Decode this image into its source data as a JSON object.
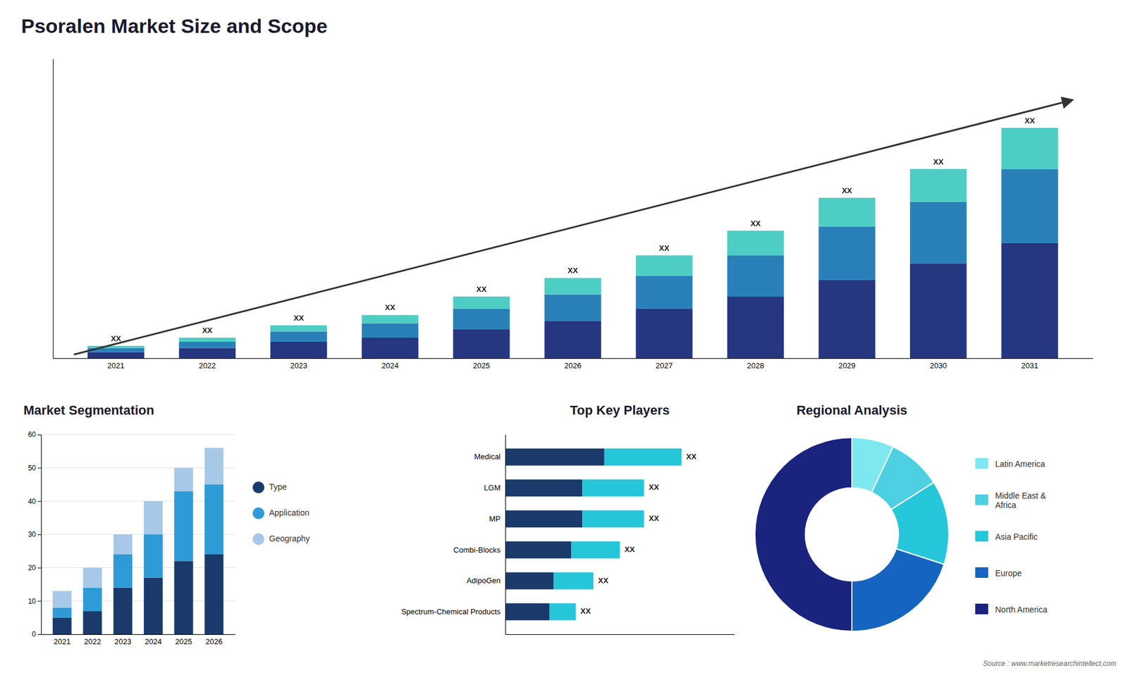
{
  "chart_data": [
    {
      "type": "bar",
      "title": "Psoralen Market Size and Scope",
      "categories": [
        "2021",
        "2022",
        "2023",
        "2024",
        "2025",
        "2026",
        "2027",
        "2028",
        "2029",
        "2030",
        "2031"
      ],
      "series": [
        {
          "color": "#263680",
          "values": [
            1.5,
            2.5,
            4,
            5,
            7,
            9,
            12,
            15,
            19,
            23,
            28
          ]
        },
        {
          "color": "#2980b9",
          "values": [
            1.0,
            1.5,
            2.5,
            3.5,
            5,
            6.5,
            8,
            10,
            13,
            15,
            18
          ]
        },
        {
          "color": "#4ecdc4",
          "values": [
            0.5,
            1.0,
            1.5,
            2,
            3,
            4,
            5,
            6,
            7,
            8,
            10
          ]
        }
      ],
      "stacked": true,
      "ylim": [
        0,
        72.8
      ],
      "tick_labels": "x",
      "grid": false,
      "annotations": [
        "XX",
        "XX",
        "XX",
        "XX",
        "XX",
        "XX",
        "XX",
        "XX",
        "XX",
        "XX",
        "XX"
      ]
    },
    {
      "type": "bar",
      "title": "Market Segmentation",
      "categories": [
        "2021",
        "2022",
        "2023",
        "2024",
        "2025",
        "2026"
      ],
      "series": [
        {
          "name": "Type",
          "color": "#1a3a6b",
          "values": [
            5,
            7,
            14,
            17,
            22,
            24
          ]
        },
        {
          "name": "Application",
          "color": "#2e9bd6",
          "values": [
            3,
            7,
            10,
            13,
            21,
            21
          ]
        },
        {
          "name": "Geography",
          "color": "#a8c8e8",
          "values": [
            5,
            6,
            6,
            10,
            7,
            11
          ]
        }
      ],
      "stacked": true,
      "ylim": [
        0,
        60
      ],
      "yticks": [
        0,
        10,
        20,
        30,
        40,
        50,
        60
      ],
      "grid": true,
      "legend": "right"
    },
    {
      "type": "bar",
      "orientation": "horizontal",
      "title": "Top Key Players",
      "categories": [
        "Medical",
        "LGM",
        "MP",
        "Combi-Blocks",
        "AdipoGen",
        "Spectrum-Chemical Products"
      ],
      "series": [
        {
          "color": "#1a3a6b",
          "values": [
            4.5,
            3.5,
            3.5,
            3.0,
            2.2,
            2.0
          ]
        },
        {
          "color": "#26c6da",
          "values": [
            3.5,
            2.8,
            2.8,
            2.2,
            1.8,
            1.2
          ]
        }
      ],
      "stacked": true,
      "xlim": [
        0,
        10.4
      ],
      "tick_labels": "y",
      "grid": false,
      "annotations": [
        "XX",
        "XX",
        "XX",
        "XX",
        "XX",
        "XX"
      ]
    },
    {
      "type": "donut",
      "title": "Regional Analysis",
      "categories": [
        "Latin America",
        "Middle East &\nAfrica",
        "Asia Pacific",
        "Europe",
        "North America"
      ],
      "values": [
        7,
        9,
        14,
        20,
        50
      ],
      "colors": [
        "#7ee8f0",
        "#4dd0e1",
        "#26c6da",
        "#1565c0",
        "#1a237e"
      ],
      "legend": "right",
      "annotations": [
        "Source : www.marketresearchintellect.com"
      ]
    }
  ]
}
